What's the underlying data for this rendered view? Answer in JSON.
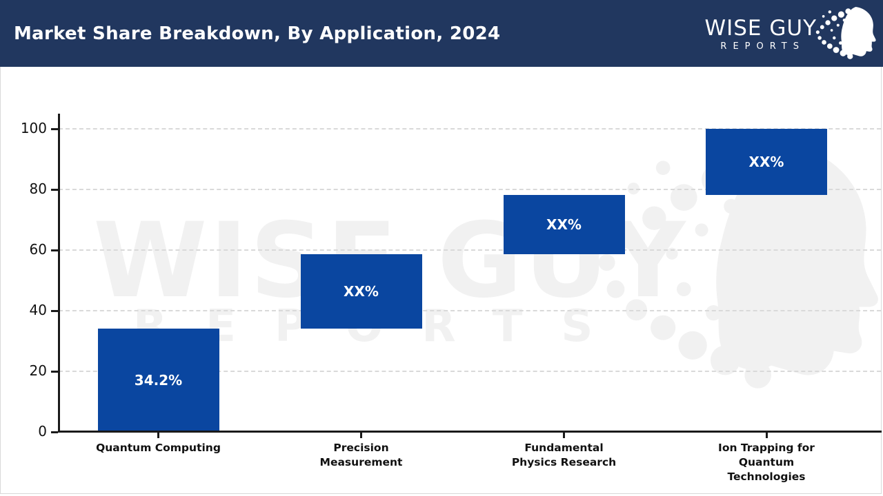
{
  "header": {
    "title": "Market Share Breakdown, By Application, 2024",
    "background": "#21375f",
    "logo": {
      "name": "WISE GUY",
      "tagline": "REPORTS"
    }
  },
  "watermark": {
    "line1": "WISE GUY",
    "line2": "REPORTS"
  },
  "chart_data": {
    "type": "bar",
    "variant": "waterfall",
    "title": "Market Share Breakdown, By Application, 2024",
    "categories": [
      "Quantum Computing",
      "Precision Measurement",
      "Fundamental Physics Research",
      "Ion Trapping for Quantum Technologies"
    ],
    "category_label_lines": [
      [
        "Quantum Computing"
      ],
      [
        "Precision",
        "Measurement"
      ],
      [
        "Fundamental",
        "Physics Research"
      ],
      [
        "Ion Trapping for",
        "Quantum",
        "Technologies"
      ]
    ],
    "values": [
      {
        "category": "Quantum Computing",
        "label": "34.2%",
        "start": 0,
        "end": 34.2
      },
      {
        "category": "Precision Measurement",
        "label": "XX%",
        "start": 34.2,
        "end": 58.6
      },
      {
        "category": "Fundamental Physics Research",
        "label": "XX%",
        "start": 58.6,
        "end": 78.2
      },
      {
        "category": "Ion Trapping for Quantum Technologies",
        "label": "XX%",
        "start": 78.2,
        "end": 100
      }
    ],
    "ylim": [
      0,
      100
    ],
    "yticks": [
      0,
      20,
      40,
      60,
      80,
      100
    ],
    "grid": "horizontal-dashed",
    "legend": "none",
    "bar_color": "#0a46a0",
    "value_label_color": "#ffffff",
    "axis_color": "#1a1a1a",
    "gridline_color": "#d9d9d9"
  }
}
